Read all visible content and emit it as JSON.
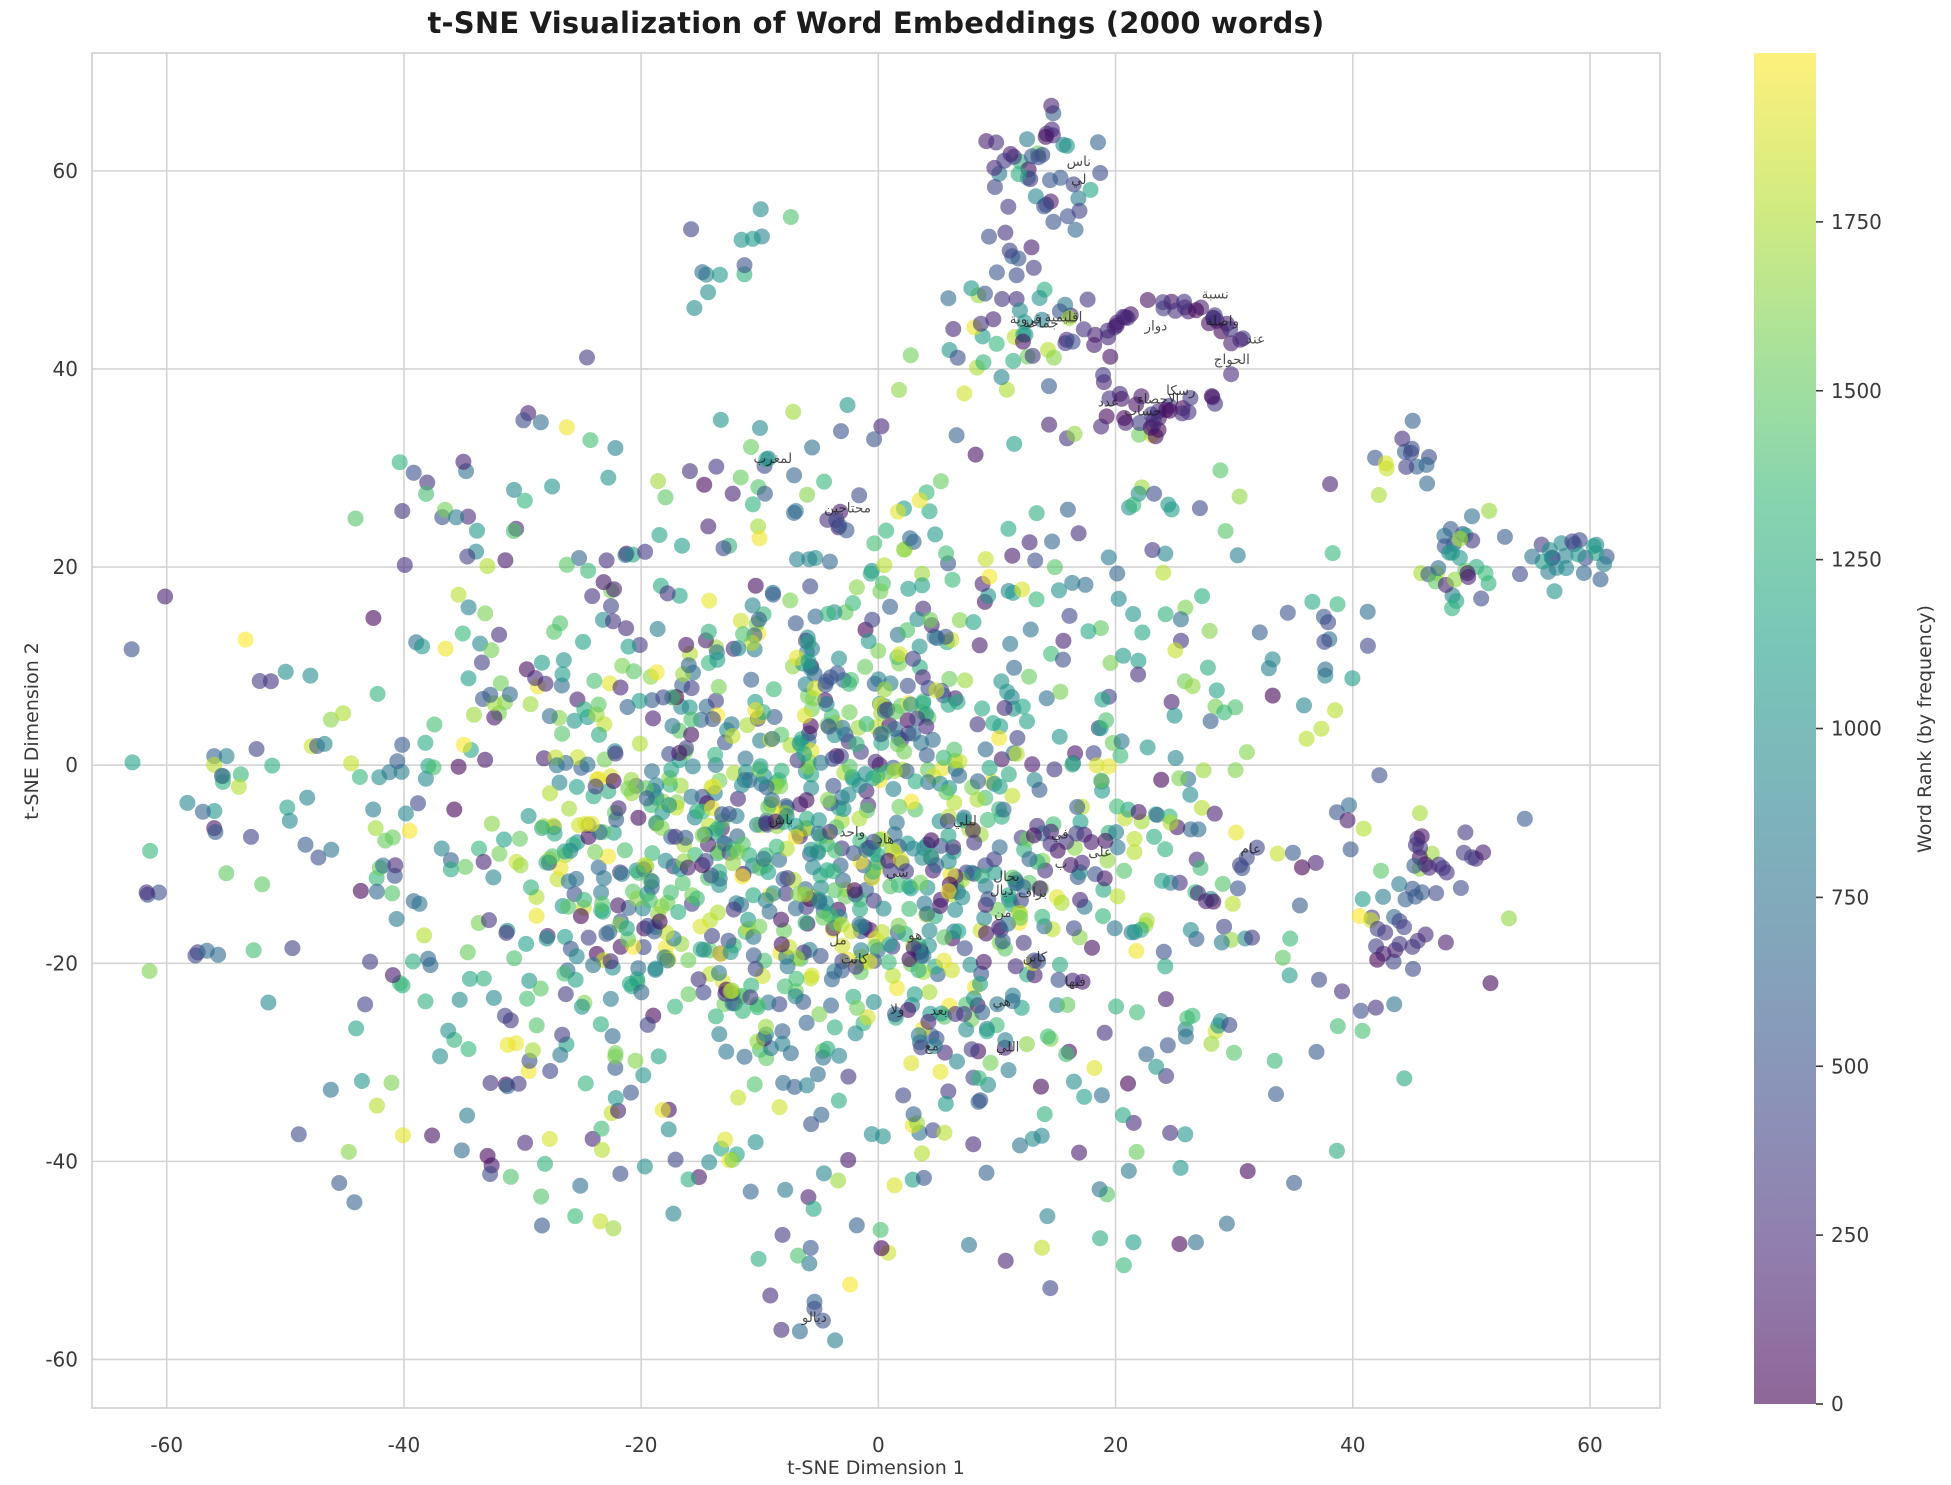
{
  "chart_data": {
    "type": "scatter",
    "title": "t-SNE Visualization of Word Embeddings (2000 words)",
    "xlabel": "t-SNE Dimension 1",
    "ylabel": "t-SNE Dimension 2",
    "xlim": [
      -66.3,
      65.9
    ],
    "ylim": [
      -64.9,
      71.9
    ],
    "x_ticks": [
      -60,
      -40,
      -20,
      0,
      20,
      40,
      60
    ],
    "y_ticks": [
      -60,
      -40,
      -20,
      0,
      20,
      40,
      60
    ],
    "grid": true,
    "n_points": 2000,
    "marker": {
      "radius_px": 8,
      "alpha": 0.6
    },
    "colorbar": {
      "label": "Word Rank (by frequency)",
      "min": 0,
      "max": 2000,
      "ticks": [
        0,
        250,
        500,
        750,
        1000,
        1250,
        1500,
        1750
      ],
      "colormap": "viridis",
      "stops": [
        "#440154",
        "#482878",
        "#3e4989",
        "#31688e",
        "#26828e",
        "#1f9e89",
        "#35b779",
        "#6ece58",
        "#b5de2b",
        "#fde725"
      ]
    },
    "annotations": [
      {
        "text": "ناس",
        "x": 16.9,
        "y": 61.0
      },
      {
        "text": "لي",
        "x": 16.9,
        "y": 59.2
      },
      {
        "text": "نسبة",
        "x": 28.4,
        "y": 47.6
      },
      {
        "text": "واصلة",
        "x": 29.0,
        "y": 44.9
      },
      {
        "text": "عند",
        "x": 31.8,
        "y": 43.1
      },
      {
        "text": "الحواج",
        "x": 29.8,
        "y": 41.0
      },
      {
        "text": "دوار",
        "x": 23.4,
        "y": 44.4
      },
      {
        "text": "جماعة",
        "x": 13.7,
        "y": 44.7
      },
      {
        "text": "اقليمية",
        "x": 15.6,
        "y": 45.3
      },
      {
        "text": "قروية",
        "x": 12.4,
        "y": 45.1
      },
      {
        "text": "رسكا",
        "x": 25.5,
        "y": 37.9
      },
      {
        "text": "الاحصاء",
        "x": 23.6,
        "y": 37.0
      },
      {
        "text": "عدد",
        "x": 19.4,
        "y": 36.7
      },
      {
        "text": "حساب",
        "x": 22.3,
        "y": 35.8
      },
      {
        "text": "لمغرب",
        "x": -8.9,
        "y": 31.0
      },
      {
        "text": "محتاجين",
        "x": -2.6,
        "y": 26.0
      },
      {
        "text": "باش",
        "x": -8.2,
        "y": -5.5
      },
      {
        "text": "واحد",
        "x": -2.2,
        "y": -6.7
      },
      {
        "text": "هاد",
        "x": 0.6,
        "y": -7.4
      },
      {
        "text": "لبلي",
        "x": 7.3,
        "y": -5.6
      },
      {
        "text": "في",
        "x": 15.3,
        "y": -6.9
      },
      {
        "text": "على",
        "x": 18.7,
        "y": -8.7
      },
      {
        "text": "ب",
        "x": 15.4,
        "y": -9.9
      },
      {
        "text": "شي",
        "x": 1.6,
        "y": -10.8
      },
      {
        "text": "بحال",
        "x": 10.8,
        "y": -11.2
      },
      {
        "text": "ديال",
        "x": 10.4,
        "y": -12.6
      },
      {
        "text": "بزاف",
        "x": 13.0,
        "y": -12.8
      },
      {
        "text": "من",
        "x": 10.5,
        "y": -14.8
      },
      {
        "text": "هو",
        "x": 3.1,
        "y": -17.1
      },
      {
        "text": "مل",
        "x": -3.4,
        "y": -17.6
      },
      {
        "text": "كانت",
        "x": -2.0,
        "y": -19.5
      },
      {
        "text": "كاين",
        "x": 13.2,
        "y": -19.3
      },
      {
        "text": "فيها",
        "x": 16.6,
        "y": -21.8
      },
      {
        "text": "هي",
        "x": 10.4,
        "y": -23.8
      },
      {
        "text": "ولا",
        "x": 1.6,
        "y": -24.6
      },
      {
        "text": "بعد",
        "x": 5.1,
        "y": -24.7
      },
      {
        "text": "مع",
        "x": 4.5,
        "y": -28.3
      },
      {
        "text": "اللي",
        "x": 10.9,
        "y": -28.4
      },
      {
        "text": "عام",
        "x": 31.4,
        "y": -8.4
      },
      {
        "text": "ديالو",
        "x": -5.4,
        "y": -55.7
      }
    ],
    "clusters": [
      {
        "t": "g",
        "x": -6,
        "y": -7,
        "sx": 16.5,
        "sy": 14,
        "n": 1330,
        "mix": {
          "lf": 0.22,
          "lo": [
            0,
            560
          ],
          "hi": [
            560,
            2000
          ]
        },
        "clip": [
          50,
          45
        ]
      },
      {
        "t": "ann",
        "x": -6,
        "y": -7,
        "r0": 32,
        "r1": 50,
        "ys": 0.9,
        "n": 235,
        "mix": {
          "lf": 0.3,
          "lo": [
            0,
            560
          ],
          "hi": [
            560,
            2000
          ]
        }
      },
      {
        "t": "ann",
        "x": -6,
        "y": -6,
        "r0": 50,
        "r1": 61,
        "ys": 0.82,
        "n": 58,
        "mix": {
          "lf": 0.35,
          "lo": [
            0,
            700
          ],
          "hi": [
            700,
            2000
          ]
        }
      },
      {
        "t": "g",
        "x": 13.5,
        "y": 59.5,
        "sx": 2.8,
        "sy": 3.6,
        "n": 46,
        "mix": {
          "lf": 0.62,
          "lo": [
            60,
            650
          ],
          "hi": [
            650,
            1500
          ]
        }
      },
      {
        "t": "g",
        "x": 11,
        "y": 49.5,
        "sx": 1.3,
        "sy": 2.3,
        "n": 7,
        "r": [
          100,
          1100
        ]
      },
      {
        "t": "ring",
        "x": 24.5,
        "y": 41,
        "rx": 6,
        "ry": 5.3,
        "j": 0.09,
        "n": 52,
        "r": [
          20,
          380
        ]
      },
      {
        "t": "g",
        "x": 21.5,
        "y": 34.6,
        "sx": 3.4,
        "sy": 1.1,
        "n": 13,
        "r": [
          20,
          380
        ]
      },
      {
        "t": "g",
        "x": 15.8,
        "y": 43.8,
        "sx": 1.5,
        "sy": 1.5,
        "n": 9,
        "r": [
          250,
          1050
        ]
      },
      {
        "t": "g",
        "x": 10.5,
        "y": 43.5,
        "sx": 2.6,
        "sy": 2.7,
        "n": 30,
        "r": [
          80,
          1950
        ]
      },
      {
        "t": "g",
        "x": -12.5,
        "y": 51.5,
        "sx": 2.8,
        "sy": 3.2,
        "n": 13,
        "r": [
          350,
          1450
        ]
      },
      {
        "t": "g",
        "x": 57.5,
        "y": 20.7,
        "sx": 2.7,
        "sy": 1.0,
        "n": 26,
        "r": [
          350,
          1250
        ]
      },
      {
        "t": "g",
        "x": 48.8,
        "y": 20.3,
        "sx": 1.8,
        "sy": 2.4,
        "n": 30,
        "r": [
          80,
          1900
        ]
      },
      {
        "t": "g",
        "x": 44.6,
        "y": 30.6,
        "sx": 1.4,
        "sy": 1.6,
        "n": 11,
        "r": [
          250,
          750
        ]
      },
      {
        "t": "g",
        "x": 42.8,
        "y": 28.8,
        "sx": 0.7,
        "sy": 0.7,
        "n": 3,
        "r": [
          1700,
          1950
        ]
      },
      {
        "t": "g",
        "x": 38.7,
        "y": 13.4,
        "sx": 1.2,
        "sy": 1.4,
        "n": 7,
        "r": [
          350,
          800
        ]
      },
      {
        "t": "ring",
        "x": 47.8,
        "y": -8.6,
        "rx": 2.3,
        "ry": 2.1,
        "j": 0.15,
        "n": 15,
        "r": [
          60,
          420
        ]
      },
      {
        "t": "g",
        "x": 44.8,
        "y": -12.6,
        "sx": 1.4,
        "sy": 1.2,
        "n": 10,
        "r": [
          450,
          850
        ]
      },
      {
        "t": "g",
        "x": 44.3,
        "y": -18.3,
        "sx": 1.5,
        "sy": 1.7,
        "n": 14,
        "r": [
          60,
          450
        ]
      },
      {
        "t": "g",
        "x": 40.5,
        "y": -25.5,
        "sx": 1.5,
        "sy": 1.5,
        "n": 6,
        "r": [
          100,
          1400
        ]
      },
      {
        "t": "g",
        "x": -5.3,
        "y": -57,
        "sx": 1.4,
        "sy": 1.7,
        "n": 6,
        "r": [
          150,
          1350
        ]
      },
      {
        "t": "g",
        "x": -60.8,
        "y": -12.4,
        "sx": 0.8,
        "sy": 0.6,
        "n": 3,
        "r": [
          150,
          500
        ]
      },
      {
        "t": "g",
        "x": -57.2,
        "y": -18.8,
        "sx": 1.0,
        "sy": 0.8,
        "n": 4,
        "r": [
          250,
          700
        ]
      },
      {
        "t": "g",
        "x": -55.8,
        "y": -2.2,
        "sx": 1.2,
        "sy": 2.2,
        "n": 6,
        "r": [
          500,
          1100
        ]
      },
      {
        "t": "g",
        "x": -51.8,
        "y": 8.6,
        "sx": 0.8,
        "sy": 0.8,
        "n": 2,
        "r": [
          200,
          600
        ]
      },
      {
        "t": "g",
        "x": -9.8,
        "y": 30.2,
        "sx": 1.4,
        "sy": 1.6,
        "n": 7,
        "r": [
          100,
          1800
        ]
      },
      {
        "t": "g",
        "x": -3.0,
        "y": 25.3,
        "sx": 0.9,
        "sy": 0.9,
        "n": 4,
        "r": [
          50,
          600
        ]
      },
      {
        "t": "g",
        "x": 31.0,
        "y": -8.8,
        "sx": 0.9,
        "sy": 0.9,
        "n": 4,
        "r": [
          100,
          700
        ]
      },
      {
        "t": "g",
        "x": -8.6,
        "y": -5.8,
        "sx": 0.7,
        "sy": 0.7,
        "n": 2,
        "r": [
          100,
          400
        ]
      },
      {
        "t": "g",
        "x": 16.8,
        "y": -8.5,
        "sx": 1.6,
        "sy": 1.2,
        "n": 8,
        "r": [
          60,
          400
        ]
      },
      {
        "t": "g",
        "x": 12.8,
        "y": -19,
        "sx": 0.9,
        "sy": 0.7,
        "n": 3,
        "r": [
          80,
          500
        ]
      },
      {
        "t": "g",
        "x": 16.2,
        "y": -21.4,
        "sx": 0.8,
        "sy": 0.7,
        "n": 3,
        "r": [
          80,
          500
        ]
      },
      {
        "t": "g",
        "x": 10.2,
        "y": -28.6,
        "sx": 0.9,
        "sy": 0.6,
        "n": 3,
        "r": [
          100,
          900
        ]
      },
      {
        "t": "g",
        "x": 4.0,
        "y": -28.6,
        "sx": 0.8,
        "sy": 0.6,
        "n": 3,
        "r": [
          100,
          1100
        ]
      },
      {
        "t": "g",
        "x": 3.3,
        "y": -25.0,
        "sx": 2.2,
        "sy": 0.6,
        "n": 4,
        "r": [
          200,
          650
        ]
      },
      {
        "t": "g",
        "x": 10.0,
        "y": -24.1,
        "sx": 0.8,
        "sy": 0.6,
        "n": 3,
        "r": [
          500,
          1000
        ]
      },
      {
        "t": "g",
        "x": -2.4,
        "y": -19.8,
        "sx": 0.9,
        "sy": 0.7,
        "n": 3,
        "r": [
          100,
          600
        ]
      },
      {
        "t": "g",
        "x": 1.2,
        "y": -11,
        "sx": 0.7,
        "sy": 0.6,
        "n": 2,
        "r": [
          100,
          400
        ]
      },
      {
        "t": "g",
        "x": 10.5,
        "y": -12.4,
        "sx": 1.3,
        "sy": 0.9,
        "n": 5,
        "r": [
          100,
          900
        ]
      },
      {
        "t": "g",
        "x": -1.6,
        "y": -7.2,
        "sx": 1.2,
        "sy": 0.8,
        "n": 4,
        "r": [
          100,
          800
        ]
      },
      {
        "t": "g",
        "x": 7.0,
        "y": -5.9,
        "sx": 0.7,
        "sy": 0.6,
        "n": 2,
        "r": [
          150,
          450
        ]
      }
    ],
    "seed": 42
  },
  "layout_colors": {
    "grid": "#d4d4d4",
    "spine": "#cfcfcf",
    "tick_text": "#3a3a3a",
    "title_text": "#1c1c1c",
    "annotation_text": "#1a1a1a",
    "background": "#ffffff"
  }
}
